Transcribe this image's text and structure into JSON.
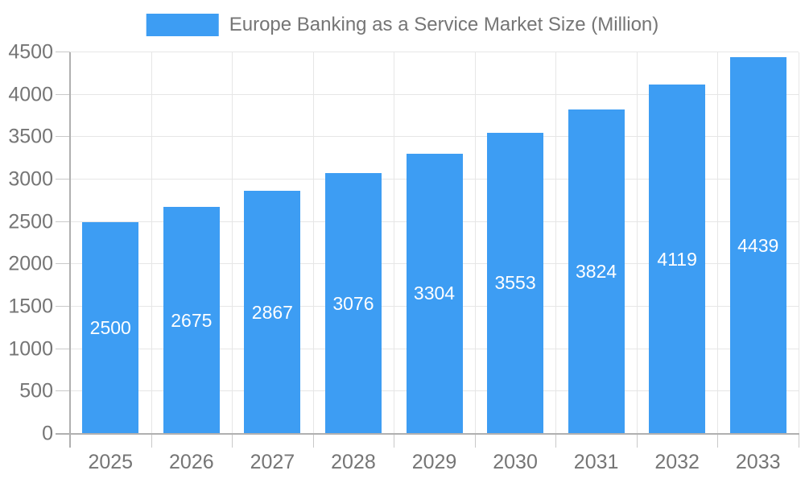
{
  "chart_data": {
    "type": "bar",
    "title": "Europe Banking as a Service Market Size (Million)",
    "legend_position": "top",
    "categories": [
      "2025",
      "2026",
      "2027",
      "2028",
      "2029",
      "2030",
      "2031",
      "2032",
      "2033"
    ],
    "series": [
      {
        "name": "Europe Banking as a Service Market Size (Million)",
        "values": [
          2500,
          2675,
          2867,
          3076,
          3304,
          3553,
          3824,
          4119,
          4439
        ]
      }
    ],
    "bar_labels_shown": true,
    "xlabel": "",
    "ylabel": "",
    "ylim": [
      0,
      4500
    ],
    "yticks": [
      0,
      500,
      1000,
      1500,
      2000,
      2500,
      3000,
      3500,
      4000,
      4500
    ],
    "grid": true
  },
  "colors": {
    "bar": "#3d9df3",
    "bar_label": "#ffffff",
    "axis_text": "#757575",
    "grid_line": "#e6e6e6",
    "axis_line": "#b0b0b0",
    "tick_line": "#c9c9c9",
    "background": "#ffffff"
  }
}
